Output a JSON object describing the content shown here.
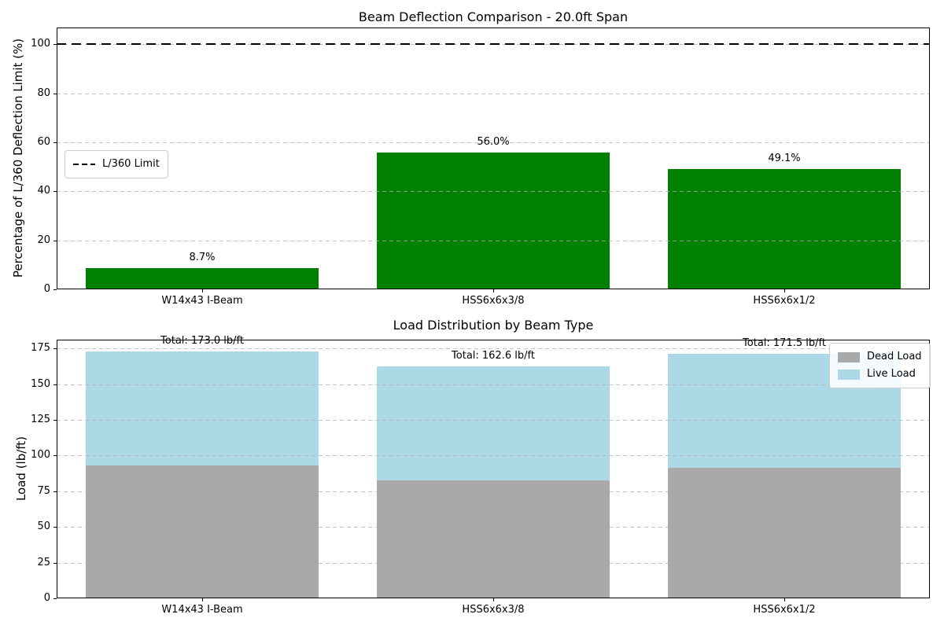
{
  "figure": {
    "background": "#ffffff"
  },
  "colors": {
    "deflection_bar": "#008000",
    "dead_load": "#a9a9a9",
    "live_load": "#add8e6",
    "limit_line": "#000000",
    "grid": "#b0b0b0",
    "spine": "#000000"
  },
  "chart_data": [
    {
      "type": "bar",
      "title": "Beam Deflection Comparison - 20.0ft Span",
      "xlabel": "",
      "ylabel": "Percentage of L/360 Deflection Limit (%)",
      "categories": [
        "W14x43 I-Beam",
        "HSS6x6x3/8",
        "HSS6x6x1/2"
      ],
      "values": [
        8.7,
        56.0,
        49.1
      ],
      "bar_labels": [
        "8.7%",
        "56.0%",
        "49.1%"
      ],
      "bar_color": "#008000",
      "yticks": [
        0,
        20,
        40,
        60,
        80,
        100
      ],
      "ylim": [
        0,
        106.9
      ],
      "grid": "horizontal dashed",
      "reference_line": {
        "value": 100,
        "label": "L/360 Limit",
        "style": "dashed",
        "color": "#000000"
      },
      "legend": {
        "position": "center-left",
        "entries": [
          "L/360 Limit"
        ]
      }
    },
    {
      "type": "bar",
      "stacked": true,
      "title": "Load Distribution by Beam Type",
      "xlabel": "",
      "ylabel": "Load (lb/ft)",
      "categories": [
        "W14x43 I-Beam",
        "HSS6x6x3/8",
        "HSS6x6x1/2"
      ],
      "series": [
        {
          "name": "Dead Load",
          "color": "#a9a9a9",
          "values": [
            93.0,
            82.6,
            91.5
          ]
        },
        {
          "name": "Live Load",
          "color": "#add8e6",
          "values": [
            80.0,
            80.0,
            80.0
          ]
        }
      ],
      "totals": [
        173.0,
        162.6,
        171.5
      ],
      "total_labels": [
        "Total: 173.0 lb/ft",
        "Total: 162.6 lb/ft",
        "Total: 171.5 lb/ft"
      ],
      "yticks": [
        0,
        25,
        50,
        75,
        100,
        125,
        150,
        175
      ],
      "ylim": [
        0,
        181.2
      ],
      "grid": "horizontal dashed",
      "legend": {
        "position": "top-right",
        "entries": [
          "Dead Load",
          "Live Load"
        ]
      }
    }
  ]
}
